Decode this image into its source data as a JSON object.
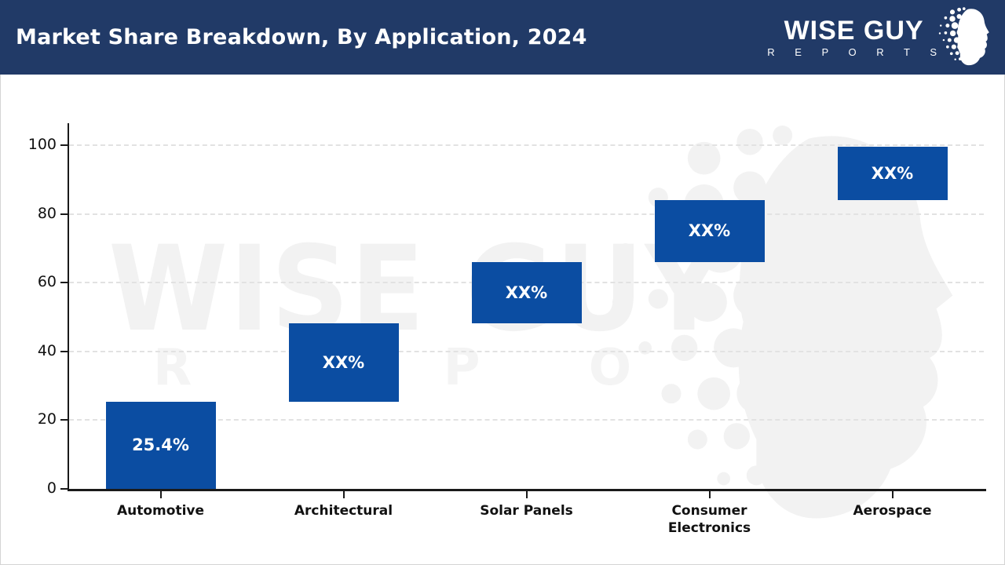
{
  "header": {
    "title": "Market Share Breakdown, By Application, 2024",
    "bg_color": "#213a67",
    "logo_line1": "WISE GUY",
    "logo_line2": "R E P O R T S"
  },
  "watermark": {
    "line1": "WISE GUY",
    "line2": "R E P O R T S"
  },
  "chart_data": {
    "type": "bar",
    "subtype": "waterfall-floating-bars",
    "title": "Market Share Breakdown, By Application, 2024",
    "categories": [
      "Automotive",
      "Architectural",
      "Solar Panels",
      "Consumer Electronics",
      "Aerospace"
    ],
    "series": [
      {
        "name": "Market Share (%)",
        "segments": [
          {
            "category": "Automotive",
            "start": 0,
            "end": 25.4,
            "label": "25.4%"
          },
          {
            "category": "Architectural",
            "start": 25.4,
            "end": 48.2,
            "label": "XX%"
          },
          {
            "category": "Solar Panels",
            "start": 48.2,
            "end": 66.0,
            "label": "XX%"
          },
          {
            "category": "Consumer Electronics",
            "start": 66.0,
            "end": 84.0,
            "label": "XX%"
          },
          {
            "category": "Aerospace",
            "start": 84.0,
            "end": 99.5,
            "label": "XX%"
          }
        ]
      }
    ],
    "xlabel": "",
    "ylabel": "",
    "ylim": [
      0,
      100
    ],
    "yticks": [
      0,
      20,
      40,
      60,
      80,
      100
    ],
    "grid": "horizontal dashed",
    "legend": "none",
    "bar_color": "#0b4da2",
    "bar_label_color": "#ffffff",
    "axis_color": "#1a1a1a"
  }
}
